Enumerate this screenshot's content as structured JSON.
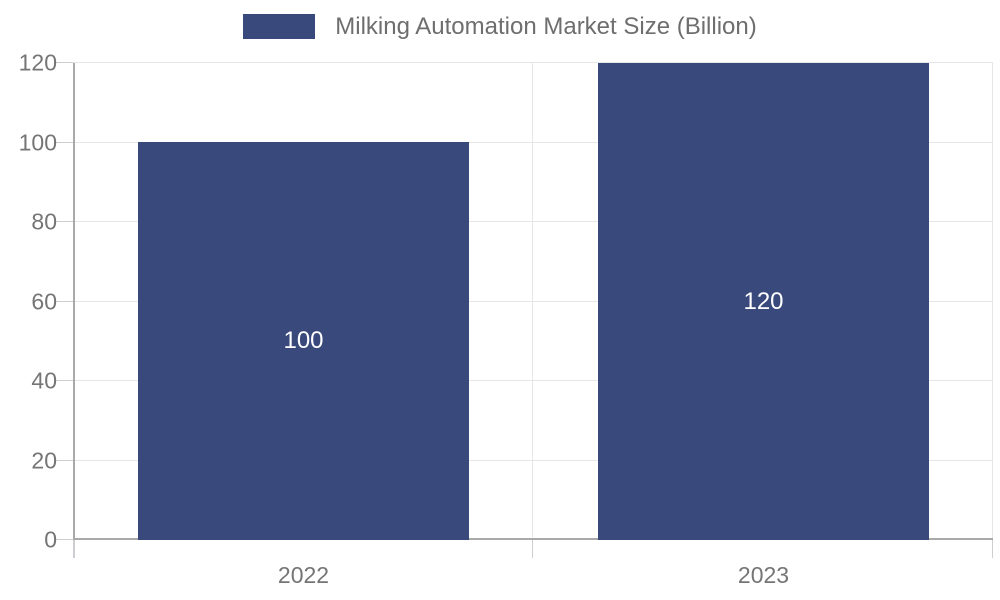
{
  "legend": {
    "label": "Milking Automation Market Size (Billion)"
  },
  "chart_data": {
    "type": "bar",
    "title": "",
    "series_name": "Milking Automation Market Size (Billion)",
    "categories": [
      "2022",
      "2023"
    ],
    "values": [
      100,
      120
    ],
    "bar_labels": [
      "100",
      "120"
    ],
    "xlabel": "",
    "ylabel": "",
    "ylim": [
      0,
      120
    ],
    "yticks": [
      0,
      20,
      40,
      60,
      80,
      100,
      120
    ],
    "grid": true,
    "legend_position": "top"
  },
  "colors": {
    "bar": "#39497c",
    "bar_label_text": "#ffffff",
    "legend_text": "#6e6e6e",
    "axis_label": "#757575",
    "gridline": "#e6e6e6",
    "axis_line": "#a9a9a9",
    "tick": "#cdcdd2",
    "background": "#ffffff"
  }
}
